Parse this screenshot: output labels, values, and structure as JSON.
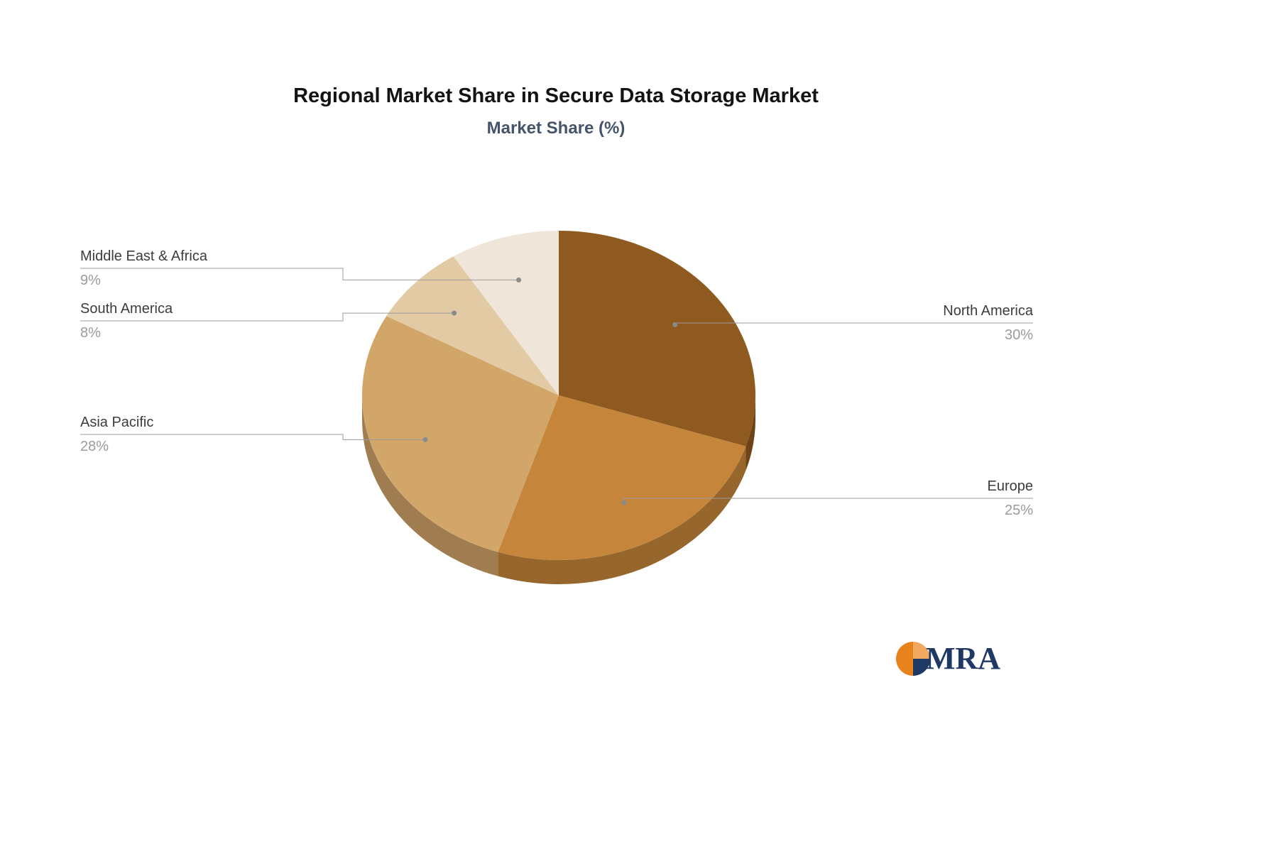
{
  "chart_data": {
    "type": "pie",
    "style": "3d",
    "title": "Regional Market Share in Secure Data Storage Market",
    "subtitle": "Market Share (%)",
    "unit": "%",
    "start_angle_deg": -90,
    "direction": "clockwise",
    "legend_position": "none",
    "slices": [
      {
        "name": "North America",
        "value": 30,
        "pct_label": "30%",
        "color": "#8F5A1F"
      },
      {
        "name": "Europe",
        "value": 25,
        "pct_label": "25%",
        "color": "#C5863B"
      },
      {
        "name": "Asia Pacific",
        "value": 28,
        "pct_label": "28%",
        "color": "#D2A569"
      },
      {
        "name": "South America",
        "value": 8,
        "pct_label": "8%",
        "color": "#E2CBA4"
      },
      {
        "name": "Middle East & Africa",
        "value": 9,
        "pct_label": "9%",
        "color": "#EFE5D8"
      }
    ]
  },
  "logo": {
    "text": "MRA",
    "orange": "#E8821C",
    "light_orange": "#F0A95E",
    "navy": "#1F3864"
  }
}
